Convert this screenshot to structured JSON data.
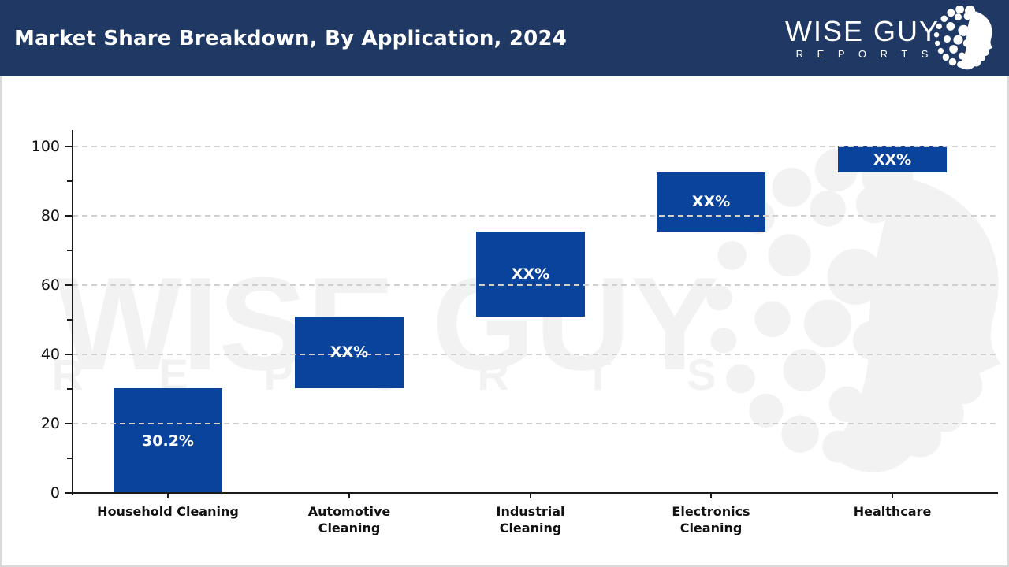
{
  "header": {
    "title": "Market Share Breakdown, By Application, 2024",
    "logo": {
      "brand_line1": "WISE GUY",
      "brand_line2": "R E P O R T S"
    }
  },
  "watermark": {
    "line1": "WISE GUY",
    "line2": "R E P O R T S"
  },
  "colors": {
    "header_bg": "#203864",
    "header_text": "#ffffff",
    "bar_fill": "#09439c",
    "bar_label": "#ffffff",
    "grid_line": "#d0d0d0",
    "axis_line": "#1a1a1a",
    "tick_label": "#111111",
    "watermark": "#f2f2f2",
    "frame_border": "#d9d9d9"
  },
  "chart_data": {
    "type": "bar",
    "subtype": "waterfall",
    "title": "Market Share Breakdown, By Application, 2024",
    "categories": [
      "Household Cleaning",
      "Automotive Cleaning",
      "Industrial Cleaning",
      "Electronics Cleaning",
      "Healthcare"
    ],
    "category_display": [
      "Household Cleaning",
      "Automotive\nCleaning",
      "Industrial\nCleaning",
      "Electronics\nCleaning",
      "Healthcare"
    ],
    "segments": [
      {
        "category": "Household Cleaning",
        "start": 0,
        "end": 30.2,
        "label": "30.2%"
      },
      {
        "category": "Automotive Cleaning",
        "start": 30.2,
        "end": 51.0,
        "label": "XX%"
      },
      {
        "category": "Industrial Cleaning",
        "start": 51.0,
        "end": 75.5,
        "label": "XX%"
      },
      {
        "category": "Electronics Cleaning",
        "start": 75.5,
        "end": 92.5,
        "label": "XX%"
      },
      {
        "category": "Healthcare",
        "start": 92.5,
        "end": 100,
        "label": "XX%"
      }
    ],
    "xlabel": "",
    "ylabel": "",
    "ylim": [
      0,
      100
    ],
    "yticks": [
      0,
      20,
      40,
      60,
      80,
      100
    ],
    "minor_yticks": [
      10,
      30,
      50,
      70,
      90
    ],
    "grid": "horizontal-dashed-above-bars",
    "legend": "none"
  }
}
